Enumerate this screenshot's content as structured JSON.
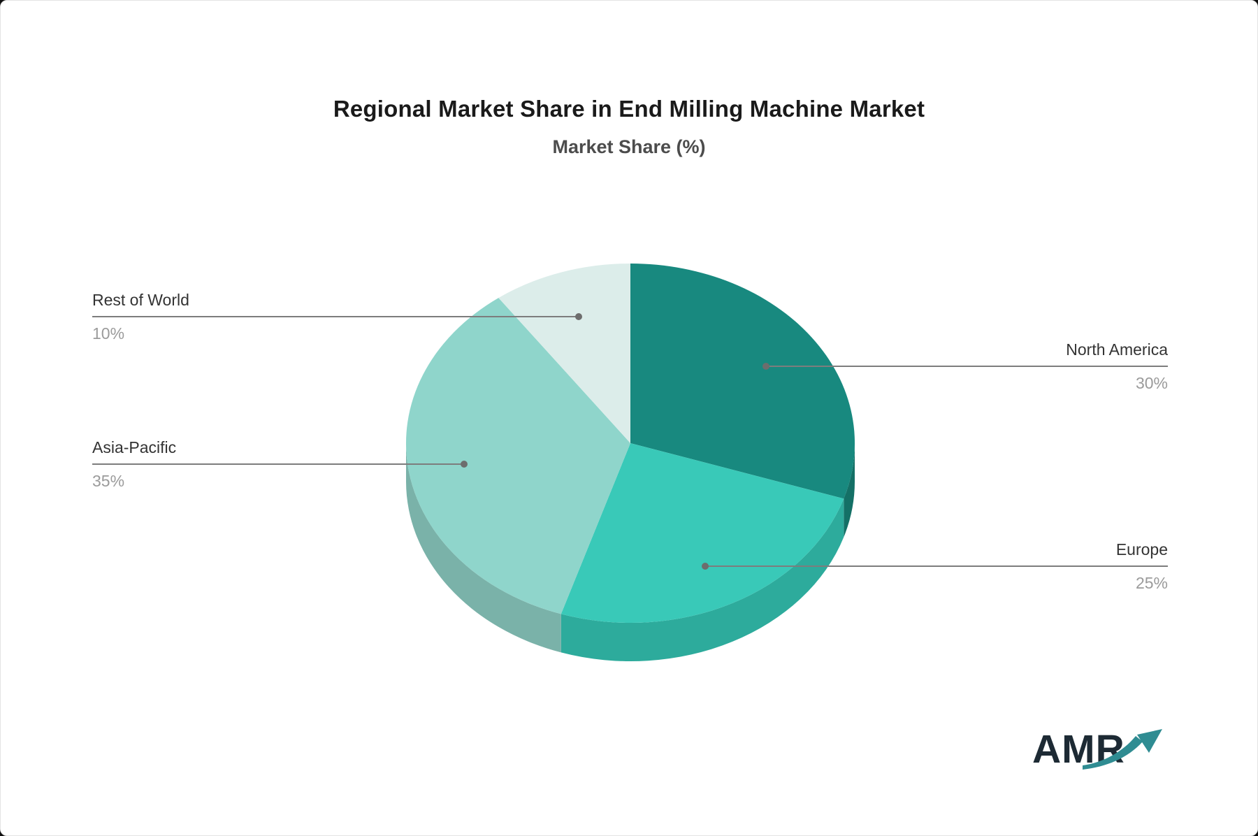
{
  "page": {
    "title": "Regional Market Share in End Milling Machine Market",
    "subtitle": "Market Share (%)"
  },
  "chart_data": {
    "type": "pie",
    "style": "3d",
    "title": "Regional Market Share in End Milling Machine Market",
    "subtitle": "Market Share (%)",
    "unit": "%",
    "start_angle_deg": -90,
    "direction": "clockwise",
    "categories": [
      "North America",
      "Europe",
      "Asia-Pacific",
      "Rest of World"
    ],
    "values": [
      30,
      25,
      35,
      10
    ],
    "value_labels": [
      "30%",
      "25%",
      "35%",
      "10%"
    ],
    "colors": [
      "#18897f",
      "#39c9b8",
      "#8fd5cb",
      "#dcedea"
    ],
    "side_colors": [
      "#147066",
      "#2dab9c",
      "#7ab2a9",
      "#c6ded9"
    ],
    "leader_line_color": "#7d7d7d",
    "leader_dot_color": "#6d6d6d",
    "label_color": "#333333",
    "value_color": "#9b9b9b",
    "legend": "none"
  },
  "logo": {
    "text": "AMR",
    "text_color": "#1d2a34",
    "arrow_color": "#2f8c92"
  }
}
